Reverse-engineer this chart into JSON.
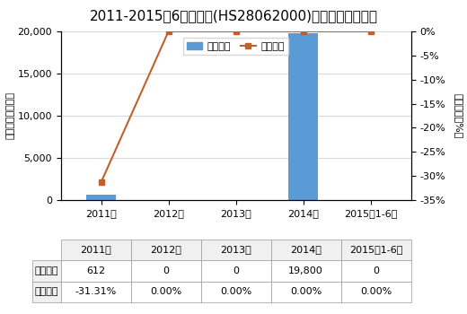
{
  "title": "2011-2015年6月氯磺酸(HS28062000)进口量及增速统计",
  "categories": [
    "2011年",
    "2012年",
    "2013年",
    "2014年",
    "2015年1-6月"
  ],
  "bar_values": [
    612,
    0,
    0,
    19800,
    0
  ],
  "line_values": [
    -31.31,
    0.0,
    0.0,
    0.0,
    0.0
  ],
  "bar_color": "#5B9BD5",
  "line_color": "#C0612B",
  "ylabel_left": "进口数量（千克）",
  "ylabel_right": "同比增长（%）",
  "ylim_left": [
    0,
    20000
  ],
  "ylim_right": [
    -35,
    0
  ],
  "yticks_left": [
    0,
    5000,
    10000,
    15000,
    20000
  ],
  "yticks_right": [
    0,
    -5,
    -10,
    -15,
    -20,
    -25,
    -30,
    -35
  ],
  "ytick_labels_right": [
    "0%",
    "-5%",
    "-10%",
    "-15%",
    "-20%",
    "-25%",
    "-30%",
    "-35%"
  ],
  "legend_bar": "进口数量",
  "legend_line": "同比增长",
  "table_row1_label": "进口数量",
  "table_row2_label": "同比增长",
  "table_row1_values": [
    "612",
    "0",
    "0",
    "19,800",
    "0"
  ],
  "table_row2_values": [
    "-31.31%",
    "0.00%",
    "0.00%",
    "0.00%",
    "0.00%"
  ],
  "background_color": "#FFFFFF",
  "grid_color": "#D9D9D9",
  "title_fontsize": 11,
  "axis_fontsize": 8,
  "tick_fontsize": 8,
  "table_fontsize": 8
}
